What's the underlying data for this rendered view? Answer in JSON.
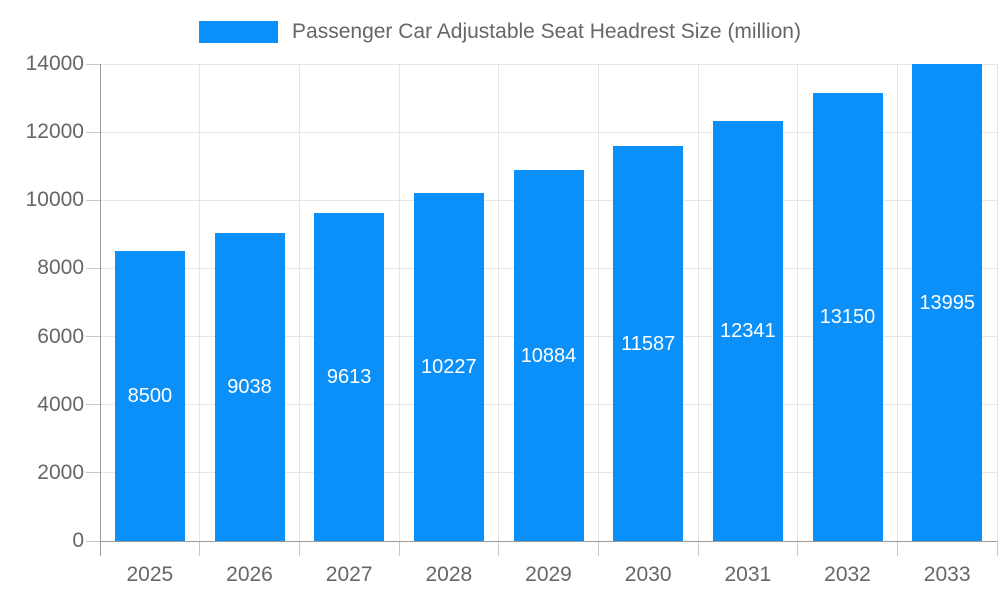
{
  "chart_data": {
    "type": "bar",
    "title": "Passenger Car Adjustable Seat Headrest Size (million)",
    "categories": [
      "2025",
      "2026",
      "2027",
      "2028",
      "2029",
      "2030",
      "2031",
      "2032",
      "2033"
    ],
    "values": [
      8500,
      9038,
      9613,
      10227,
      10884,
      11587,
      12341,
      13150,
      13995
    ],
    "xlabel": "",
    "ylabel": "",
    "ylim": [
      0,
      14000
    ],
    "yticks": [
      0,
      2000,
      4000,
      6000,
      8000,
      10000,
      12000,
      14000
    ],
    "grid": "on",
    "legend_position": "top-center",
    "value_labels": "inside-center-white",
    "colors": {
      "bar": "#0a90f8",
      "text": "#666666",
      "axis": "#999999",
      "grid": "#e6e6e6",
      "tick": "#c8c8c8",
      "value_label": "#ffffff",
      "background": "#ffffff"
    }
  }
}
